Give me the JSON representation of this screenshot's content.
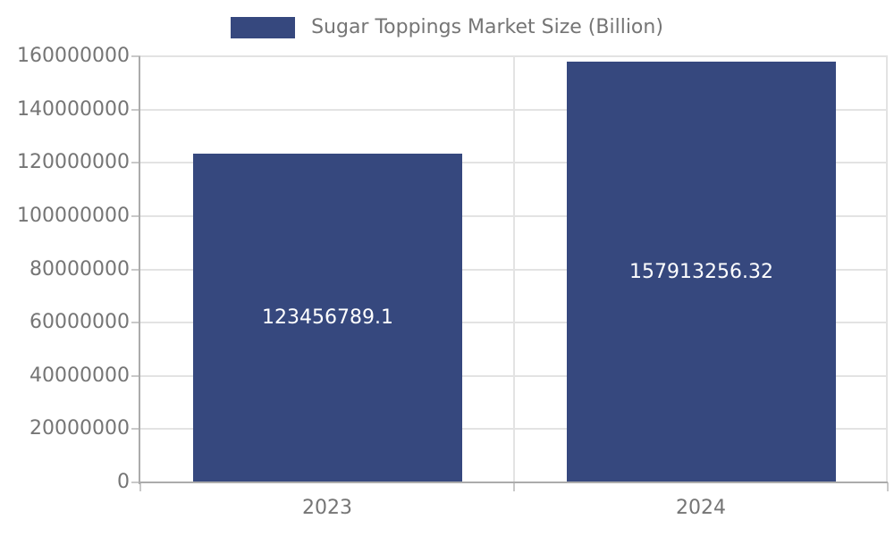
{
  "chart_data": {
    "type": "bar",
    "title": "Sugar Toppings Market Size (Billion)",
    "legend": {
      "label": "Sugar Toppings Market Size (Billion)",
      "position": "top-center"
    },
    "categories": [
      "2023",
      "2024"
    ],
    "series": [
      {
        "name": "Sugar Toppings Market Size (Billion)",
        "values": [
          123456789.1,
          157913256.32
        ],
        "value_labels": [
          "123456789.1",
          "157913256.32"
        ]
      }
    ],
    "xlabel": "",
    "ylabel": "",
    "ylim": [
      0,
      160000000
    ],
    "yticks": [
      0,
      20000000,
      40000000,
      60000000,
      80000000,
      100000000,
      120000000,
      140000000,
      160000000
    ],
    "ytick_labels": [
      "0",
      "20000000",
      "40000000",
      "60000000",
      "80000000",
      "100000000",
      "120000000",
      "140000000",
      "160000000"
    ],
    "grid": true,
    "value_label_position": "inside-center",
    "colors": {
      "bar": "#36487e",
      "grid_line": "#e3e3e3",
      "axis_line": "#ababab",
      "tick_mark": "#c9c9c9",
      "tick_label": "#757575",
      "legend_text": "#757575",
      "value_label": "#ffffff",
      "background": "#ffffff"
    }
  }
}
